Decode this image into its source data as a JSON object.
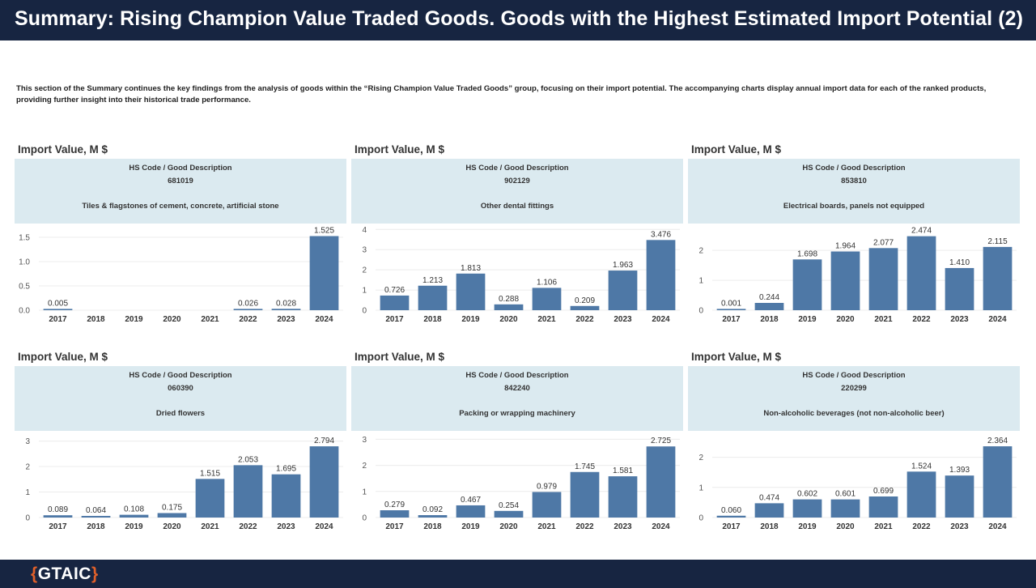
{
  "header": {
    "title": "Summary: Rising Champion Value Traded Goods. Goods with the Highest Estimated Import Potential (2)"
  },
  "intro": "This section of the Summary continues the key findings from the analysis of goods within the “Rising Champion Value Traded Goods” group, focusing on their import potential. The accompanying charts display annual import data for each of the ranked products, providing further insight into their historical trade performance.",
  "footer": {
    "logo_open": "{",
    "logo_text": "GTAIC",
    "logo_close": "}"
  },
  "colors": {
    "bar": "#4e78a6",
    "desc_background": "#dbeaf0",
    "header_background": "#172541",
    "logo_brace": "#e0602a"
  },
  "panels": [
    {
      "title": "Import Value, M $",
      "desc_header": "HS Code  /  Good Description",
      "code": "681019",
      "description": "Tiles & flagstones of cement, concrete, artificial stone"
    },
    {
      "title": "Import Value, M $",
      "desc_header": "HS Code  /  Good Description",
      "code": "902129",
      "description": "Other dental fittings"
    },
    {
      "title": "Import Value, M $",
      "desc_header": "HS Code  /  Good Description",
      "code": "853810",
      "description": "Electrical boards, panels not equipped"
    },
    {
      "title": "Import Value, M $",
      "desc_header": "HS Code  /  Good Description",
      "code": "060390",
      "description": "Dried flowers"
    },
    {
      "title": "Import Value, M $",
      "desc_header": "HS Code  /  Good Description",
      "code": "842240",
      "description": "Packing or wrapping machinery"
    },
    {
      "title": "Import Value, M $",
      "desc_header": "HS Code  /  Good Description",
      "code": "220299",
      "description": "Non-alcoholic beverages (not non-alcoholic beer)"
    }
  ],
  "chart_data": [
    {
      "type": "bar",
      "title": "Import Value, M $",
      "categories": [
        "2017",
        "2018",
        "2019",
        "2020",
        "2021",
        "2022",
        "2023",
        "2024"
      ],
      "values": [
        0.005,
        null,
        null,
        null,
        null,
        0.026,
        0.028,
        1.525
      ],
      "labels": [
        "0.005",
        "",
        "",
        "",
        "",
        "0.026",
        "0.028",
        "1.525"
      ],
      "yticks": [
        0.0,
        0.5,
        1.0,
        1.5
      ],
      "ytick_labels": [
        "0.0",
        "0.5",
        "1.0",
        "1.5"
      ],
      "ylim": [
        0,
        1.6
      ],
      "grid": true
    },
    {
      "type": "bar",
      "title": "Import Value, M $",
      "categories": [
        "2017",
        "2018",
        "2019",
        "2020",
        "2021",
        "2022",
        "2023",
        "2024"
      ],
      "values": [
        0.726,
        1.213,
        1.813,
        0.288,
        1.106,
        0.209,
        1.963,
        3.476
      ],
      "labels": [
        "0.726",
        "1.213",
        "1.813",
        "0.288",
        "1.106",
        "0.209",
        "1.963",
        "3.476"
      ],
      "yticks": [
        0,
        1,
        2,
        3,
        4
      ],
      "ytick_labels": [
        "0",
        "1",
        "2",
        "3",
        "4"
      ],
      "ylim": [
        0,
        3.85
      ],
      "grid": true
    },
    {
      "type": "bar",
      "title": "Import Value, M $",
      "categories": [
        "2017",
        "2018",
        "2019",
        "2020",
        "2021",
        "2022",
        "2023",
        "2024"
      ],
      "values": [
        0.001,
        0.244,
        1.698,
        1.964,
        2.077,
        2.474,
        1.41,
        2.115
      ],
      "labels": [
        "0.001",
        "0.244",
        "1.698",
        "1.964",
        "2.077",
        "2.474",
        "1.410",
        "2.115"
      ],
      "yticks": [
        0,
        1,
        2
      ],
      "ytick_labels": [
        "0",
        "1",
        "2"
      ],
      "ylim": [
        0,
        2.6
      ],
      "grid": true
    },
    {
      "type": "bar",
      "title": "Import Value, M $",
      "categories": [
        "2017",
        "2018",
        "2019",
        "2020",
        "2021",
        "2022",
        "2023",
        "2024"
      ],
      "values": [
        0.089,
        0.064,
        0.108,
        0.175,
        1.515,
        2.053,
        1.695,
        2.794
      ],
      "labels": [
        "0.089",
        "0.064",
        "0.108",
        "0.175",
        "1.515",
        "2.053",
        "1.695",
        "2.794"
      ],
      "yticks": [
        0,
        1,
        2,
        3
      ],
      "ytick_labels": [
        "0",
        "1",
        "2",
        "3"
      ],
      "ylim": [
        0,
        3.05
      ],
      "grid": true
    },
    {
      "type": "bar",
      "title": "Import Value, M $",
      "categories": [
        "2017",
        "2018",
        "2019",
        "2020",
        "2021",
        "2022",
        "2023",
        "2024"
      ],
      "values": [
        0.279,
        0.092,
        0.467,
        0.254,
        0.979,
        1.745,
        1.581,
        2.725
      ],
      "labels": [
        "0.279",
        "0.092",
        "0.467",
        "0.254",
        "0.979",
        "1.745",
        "1.581",
        "2.725"
      ],
      "yticks": [
        0,
        1,
        2,
        3
      ],
      "ytick_labels": [
        "0",
        "1",
        "2",
        "3"
      ],
      "ylim": [
        0,
        2.98
      ],
      "grid": true
    },
    {
      "type": "bar",
      "title": "Import Value, M $",
      "categories": [
        "2017",
        "2018",
        "2019",
        "2020",
        "2021",
        "2022",
        "2023",
        "2024"
      ],
      "values": [
        0.06,
        0.474,
        0.602,
        0.601,
        0.699,
        1.524,
        1.393,
        2.364
      ],
      "labels": [
        "0.060",
        "0.474",
        "0.602",
        "0.601",
        "0.699",
        "1.524",
        "1.393",
        "2.364"
      ],
      "yticks": [
        0,
        1,
        2
      ],
      "ytick_labels": [
        "0",
        "1",
        "2"
      ],
      "ylim": [
        0,
        2.58
      ],
      "grid": true
    }
  ]
}
